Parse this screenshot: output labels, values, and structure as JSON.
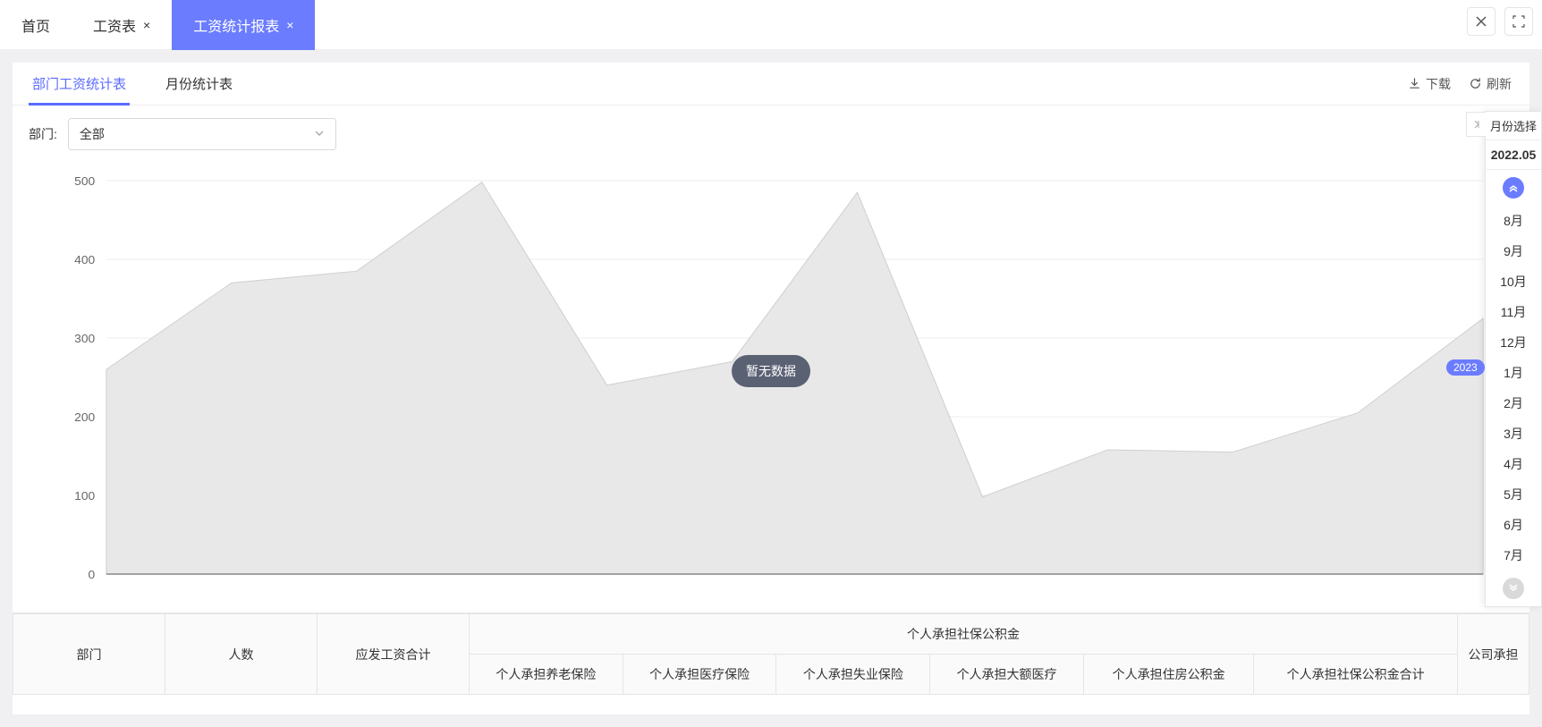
{
  "tabs": {
    "home": "首页",
    "salary": "工资表",
    "stats": "工资统计报表"
  },
  "subtabs": {
    "dept": "部门工资统计表",
    "month": "月份统计表"
  },
  "actions": {
    "download": "下载",
    "refresh": "刷新"
  },
  "filter": {
    "label": "部门:",
    "value": "全部"
  },
  "chart": {
    "type": "area",
    "ylim": [
      0,
      500
    ],
    "ytick_step": 100,
    "yticks": [
      "0",
      "100",
      "200",
      "300",
      "400",
      "500"
    ],
    "values": [
      260,
      370,
      385,
      498,
      240,
      270,
      485,
      98,
      158,
      155,
      205,
      325
    ],
    "fill_color": "#e8e8e8",
    "line_color": "#d0d0d0",
    "grid_color": "#eeeeee",
    "axis_color": "#999999",
    "tick_fontsize": 13,
    "tooltip": "暂无数据",
    "tooltip_bg": "#5a6173"
  },
  "table": {
    "group_header": "个人承担社保公积金",
    "columns_fixed": [
      "部门",
      "人数",
      "应发工资合计"
    ],
    "columns_sub": [
      "个人承担养老保险",
      "个人承担医疗保险",
      "个人承担失业保险",
      "个人承担大额医疗",
      "个人承担住房公积金",
      "个人承担社保公积金合计",
      "公司承担"
    ]
  },
  "month_panel": {
    "title": "月份选择",
    "selected": "2022.05",
    "year_badge": "2023",
    "months": [
      "8月",
      "9月",
      "10月",
      "11月",
      "12月",
      "1月",
      "2月",
      "3月",
      "4月",
      "5月",
      "6月",
      "7月"
    ],
    "year_badge_index": 5
  }
}
